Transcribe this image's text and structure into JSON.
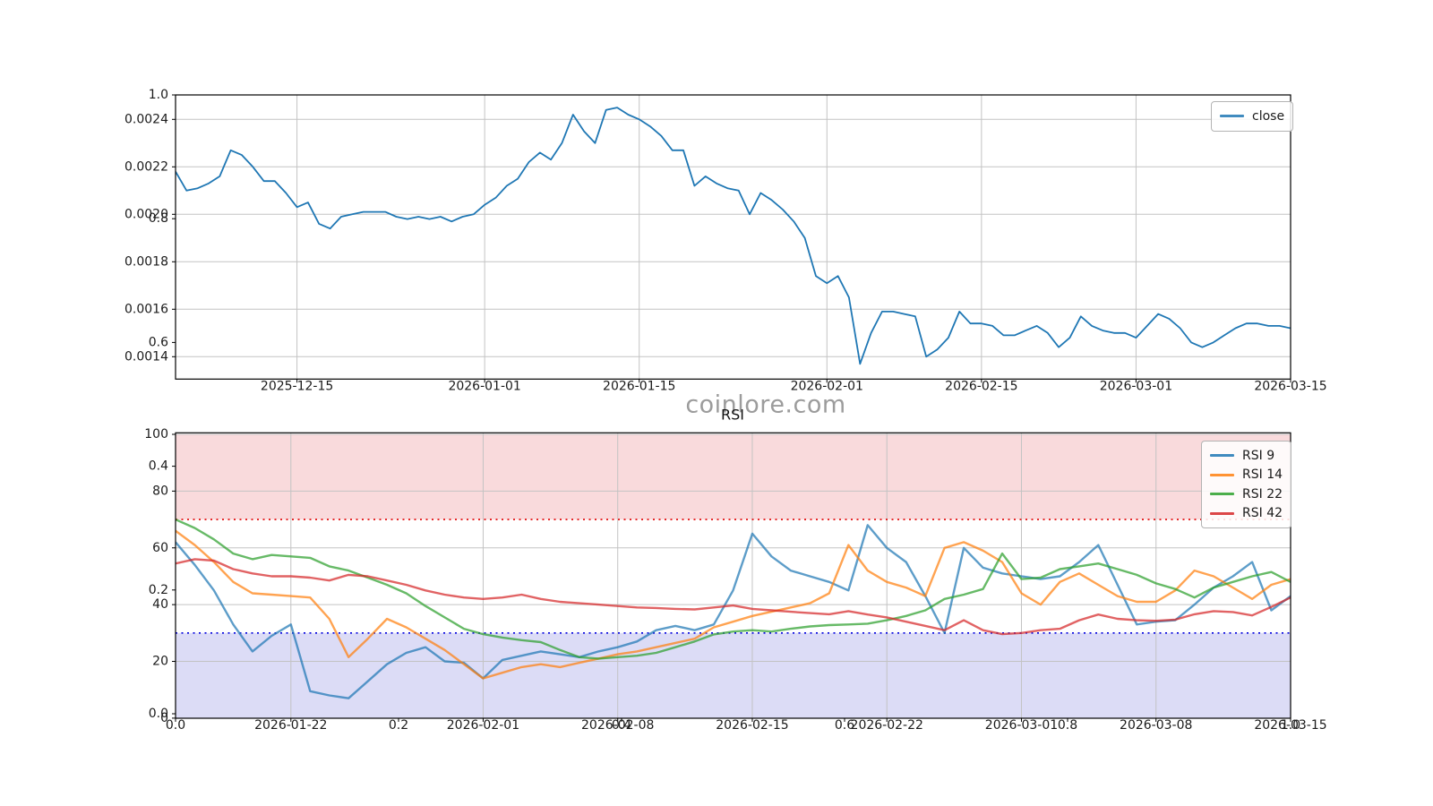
{
  "watermark": "coinlore.com",
  "figure_bg": "#ffffff",
  "overlay_axis": {
    "x_tick_labels": [
      "0.0",
      "0.2",
      "0.4",
      "0.6",
      "0.8",
      "1.0"
    ],
    "y_tick_labels": [
      "1.0",
      "0.8",
      "0.6",
      "0.4",
      "0.2",
      "0.0"
    ]
  },
  "chart_data": [
    {
      "type": "line",
      "name": "close-price",
      "title": "",
      "xlabel": "",
      "ylabel": "",
      "grid": true,
      "legend_position": "upper right",
      "x_start": "2025-12-04",
      "x_end": "2026-03-15",
      "x_interval": "daily",
      "x_tick_labels": [
        "2025-12-15",
        "2026-01-01",
        "2026-01-15",
        "2026-02-01",
        "2026-02-15",
        "2026-03-01",
        "2026-03-15"
      ],
      "x_tick_day_index": [
        11,
        28,
        42,
        59,
        73,
        87,
        101
      ],
      "y_tick_labels": [
        "0.0024",
        "0.0022",
        "0.0020",
        "0.0018",
        "0.0016",
        "0.0014"
      ],
      "y_ticks": [
        0.0024,
        0.0022,
        0.002,
        0.0018,
        0.0016,
        0.0014
      ],
      "ylim": [
        0.001306,
        0.002503
      ],
      "series": [
        {
          "name": "close",
          "color": "#1f77b4",
          "values": [
            0.00218,
            0.0021,
            0.00211,
            0.00213,
            0.00216,
            0.00227,
            0.00225,
            0.0022,
            0.00214,
            0.00214,
            0.00209,
            0.00203,
            0.00205,
            0.00196,
            0.00194,
            0.00199,
            0.002,
            0.00201,
            0.00201,
            0.00201,
            0.00199,
            0.00198,
            0.00199,
            0.00198,
            0.00199,
            0.00197,
            0.00199,
            0.002,
            0.00204,
            0.00207,
            0.00212,
            0.00215,
            0.00222,
            0.00226,
            0.00223,
            0.0023,
            0.00242,
            0.00235,
            0.0023,
            0.00244,
            0.00245,
            0.00242,
            0.0024,
            0.00237,
            0.00233,
            0.00227,
            0.00227,
            0.00212,
            0.00216,
            0.00213,
            0.00211,
            0.0021,
            0.002,
            0.00209,
            0.00206,
            0.00202,
            0.00197,
            0.0019,
            0.00174,
            0.00171,
            0.00174,
            0.00165,
            0.00137,
            0.0015,
            0.00159,
            0.00159,
            0.00158,
            0.00157,
            0.0014,
            0.00143,
            0.00148,
            0.00159,
            0.00154,
            0.00154,
            0.00153,
            0.00149,
            0.00149,
            0.00151,
            0.00153,
            0.0015,
            0.00144,
            0.00148,
            0.00157,
            0.00153,
            0.00151,
            0.0015,
            0.0015,
            0.00148,
            0.00153,
            0.00158,
            0.00156,
            0.00152,
            0.00146,
            0.00144,
            0.00146,
            0.00149,
            0.00152,
            0.00154,
            0.00154,
            0.00153,
            0.00153,
            0.00152
          ]
        }
      ]
    },
    {
      "type": "line",
      "name": "rsi",
      "title": "RSI",
      "xlabel": "",
      "ylabel": "",
      "grid": true,
      "legend_position": "upper right",
      "x_start": "2026-01-16",
      "x_end": "2026-03-15",
      "x_interval": "daily",
      "x_tick_labels": [
        "2026-01-22",
        "2026-02-01",
        "2026-02-08",
        "2026-02-15",
        "2026-02-22",
        "2026-03-01",
        "2026-03-08",
        "2026-03-15"
      ],
      "x_tick_day_index": [
        6,
        16,
        23,
        30,
        37,
        44,
        51,
        58
      ],
      "y_tick_labels": [
        "100",
        "80",
        "60",
        "40",
        "20",
        "0"
      ],
      "y_ticks": [
        100,
        80,
        60,
        40,
        20,
        0
      ],
      "ylim": [
        0,
        100.6
      ],
      "bands": [
        {
          "from": 70,
          "to": 100,
          "color": "#f9dadc",
          "meaning": "overbought-zone"
        },
        {
          "from": 0,
          "to": 30,
          "color": "#dcdcf6",
          "meaning": "oversold-zone"
        }
      ],
      "ref_lines": [
        {
          "value": 70,
          "color": "#e00000",
          "style": "dotted"
        },
        {
          "value": 30,
          "color": "#0000dd",
          "style": "dotted"
        }
      ],
      "series": [
        {
          "name": "RSI 9",
          "color": "#1f77b4",
          "values": [
            62,
            54,
            45,
            33,
            23.5,
            29,
            33,
            9.5,
            8,
            7,
            13,
            19,
            23,
            25,
            20,
            19.5,
            14,
            20.5,
            22,
            23.5,
            22.5,
            21.5,
            23.5,
            25,
            27,
            31,
            32.5,
            31,
            33,
            45,
            65,
            57,
            52,
            50,
            48,
            45,
            68,
            60,
            55,
            43,
            30,
            60,
            53,
            51,
            50,
            49,
            50,
            55,
            61,
            47,
            33,
            34,
            34.5,
            40,
            46,
            50,
            55,
            38,
            43
          ]
        },
        {
          "name": "RSI 14",
          "color": "#ff7f0e",
          "values": [
            66,
            61,
            55,
            48,
            44,
            43.5,
            43,
            42.5,
            35,
            21.5,
            28,
            35,
            32,
            28,
            24,
            19,
            14,
            16,
            18,
            19,
            18,
            19.5,
            21,
            22.5,
            23.5,
            25,
            26.5,
            28,
            32,
            34,
            36,
            37.5,
            39,
            40.5,
            44,
            61,
            52,
            48,
            46,
            43,
            60,
            62,
            59,
            55,
            44,
            40,
            48,
            51,
            47,
            43,
            41,
            41,
            45,
            52,
            50,
            46,
            42,
            47,
            49
          ]
        },
        {
          "name": "RSI 22",
          "color": "#2ca02c",
          "values": [
            70,
            67,
            63,
            58,
            56,
            57.5,
            57,
            56.5,
            53.5,
            52,
            49.5,
            47,
            44,
            39.5,
            35.5,
            31.5,
            29.6,
            28.4,
            27.5,
            26.8,
            24,
            21.5,
            21,
            21.5,
            22,
            23,
            25,
            27,
            29.5,
            30.5,
            31,
            30.5,
            31.5,
            32.3,
            32.8,
            33,
            33.3,
            34.5,
            36,
            38,
            42,
            43.5,
            45.5,
            58,
            49,
            49.5,
            52.5,
            53.5,
            54.5,
            52.5,
            50.5,
            47.5,
            45.5,
            42.5,
            46,
            48,
            50,
            51.5,
            48
          ]
        },
        {
          "name": "RSI 42",
          "color": "#d62728",
          "values": [
            54.5,
            56,
            55.5,
            52.5,
            51,
            50,
            50,
            49.5,
            48.5,
            50.5,
            50,
            48.5,
            47,
            45,
            43.5,
            42.5,
            42,
            42.5,
            43.5,
            42,
            41,
            40.5,
            40,
            39.5,
            39,
            38.8,
            38.5,
            38.3,
            39,
            39.7,
            38.5,
            38,
            37.5,
            37,
            36.6,
            37.7,
            36.5,
            35.5,
            34,
            32.5,
            31,
            34.5,
            31,
            29.6,
            30,
            31,
            31.5,
            34.5,
            36.5,
            35,
            34.5,
            34.3,
            34.7,
            36.6,
            37.7,
            37.4,
            36.2,
            39.2,
            42.5
          ]
        }
      ]
    }
  ]
}
